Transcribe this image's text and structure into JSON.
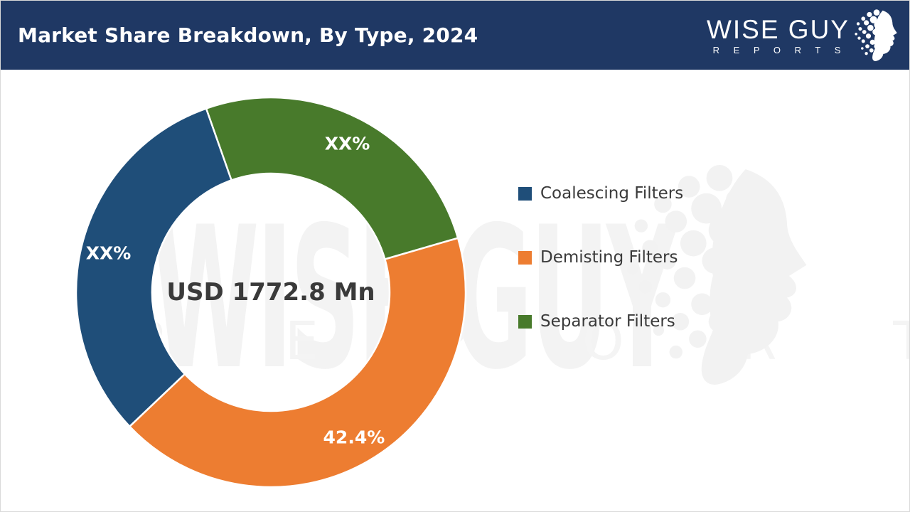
{
  "header": {
    "title": "Market Share Breakdown, By Type, 2024",
    "bg_color": "#1F3864",
    "logo": {
      "line1": "WISE GUY",
      "line2": "R E P O R T S"
    }
  },
  "watermark": {
    "line1": "WISE GUY",
    "line2": "R E P O R T S"
  },
  "chart_data": {
    "type": "pie",
    "subtype": "donut",
    "title": "Market Share Breakdown, By Type, 2024",
    "center_label": "USD 1772.8 Mn",
    "start_angle_deg": -19.4,
    "legend_position": "right",
    "segments": [
      {
        "name": "Separator Filters",
        "label": "XX%",
        "percent": 25.9,
        "color": "#487A2B"
      },
      {
        "name": "Demisting Filters",
        "label": "42.4%",
        "percent": 42.4,
        "color": "#ED7D31"
      },
      {
        "name": "Coalescing Filters",
        "label": "XX%",
        "percent": 31.7,
        "color": "#1F4E79"
      }
    ]
  },
  "legend": {
    "items": [
      {
        "label": "Coalescing Filters",
        "color": "#1F4E79"
      },
      {
        "label": "Demisting Filters",
        "color": "#ED7D31"
      },
      {
        "label": "Separator Filters",
        "color": "#487A2B"
      }
    ]
  }
}
